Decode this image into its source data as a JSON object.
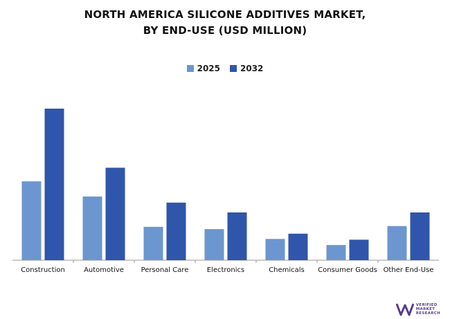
{
  "chart_data": {
    "type": "bar",
    "title_line1": "NORTH AMERICA SILICONE ADDITIVES MARKET,",
    "title_line2": "BY END-USE (USD MILLION)",
    "categories": [
      "Construction",
      "Automotive",
      "Personal Care",
      "Electronics",
      "Chemicals",
      "Consumer Goods",
      "Other End-Use"
    ],
    "series": [
      {
        "name": "2025",
        "color": "#6c96cf",
        "values": [
          52,
          42,
          22,
          20.5,
          14,
          10,
          22.5
        ]
      },
      {
        "name": "2032",
        "color": "#2f56ab",
        "values": [
          100,
          61,
          38,
          31.5,
          17.5,
          13.5,
          31.5
        ]
      }
    ],
    "ylim": [
      0,
      100
    ],
    "grid": false,
    "legend_position": "top-center"
  },
  "logo": {
    "line1": "VERIFIED",
    "line2": "MARKET",
    "line3": "RESEARCH",
    "color": "#5a3d8a"
  }
}
